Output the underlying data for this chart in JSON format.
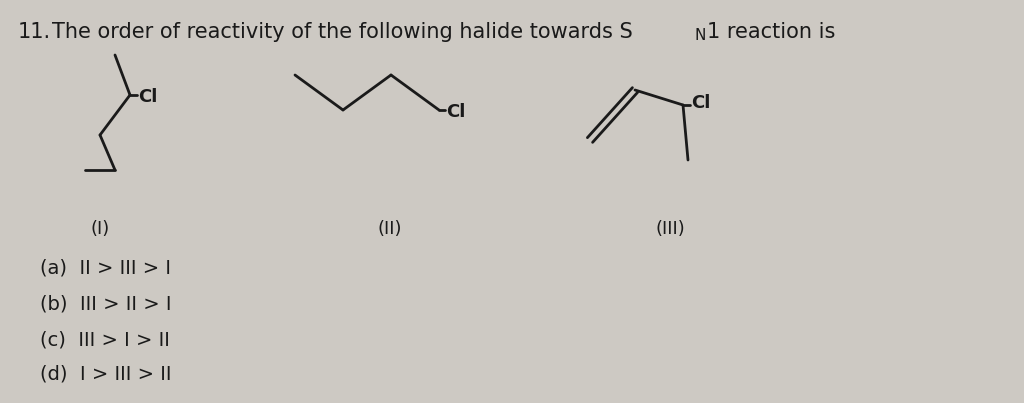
{
  "bg_color": "#cdc9c3",
  "text_color": "#1a1a1a",
  "options": [
    "(a)  II > III > I",
    "(b)  III > II > I",
    "(c)  III > I > II",
    "(d)  I > III > II"
  ],
  "labels": [
    "(I)",
    "(II)",
    "(III)"
  ],
  "font_size_title": 15,
  "font_size_options": 14,
  "font_size_labels": 13,
  "lw": 2.0
}
